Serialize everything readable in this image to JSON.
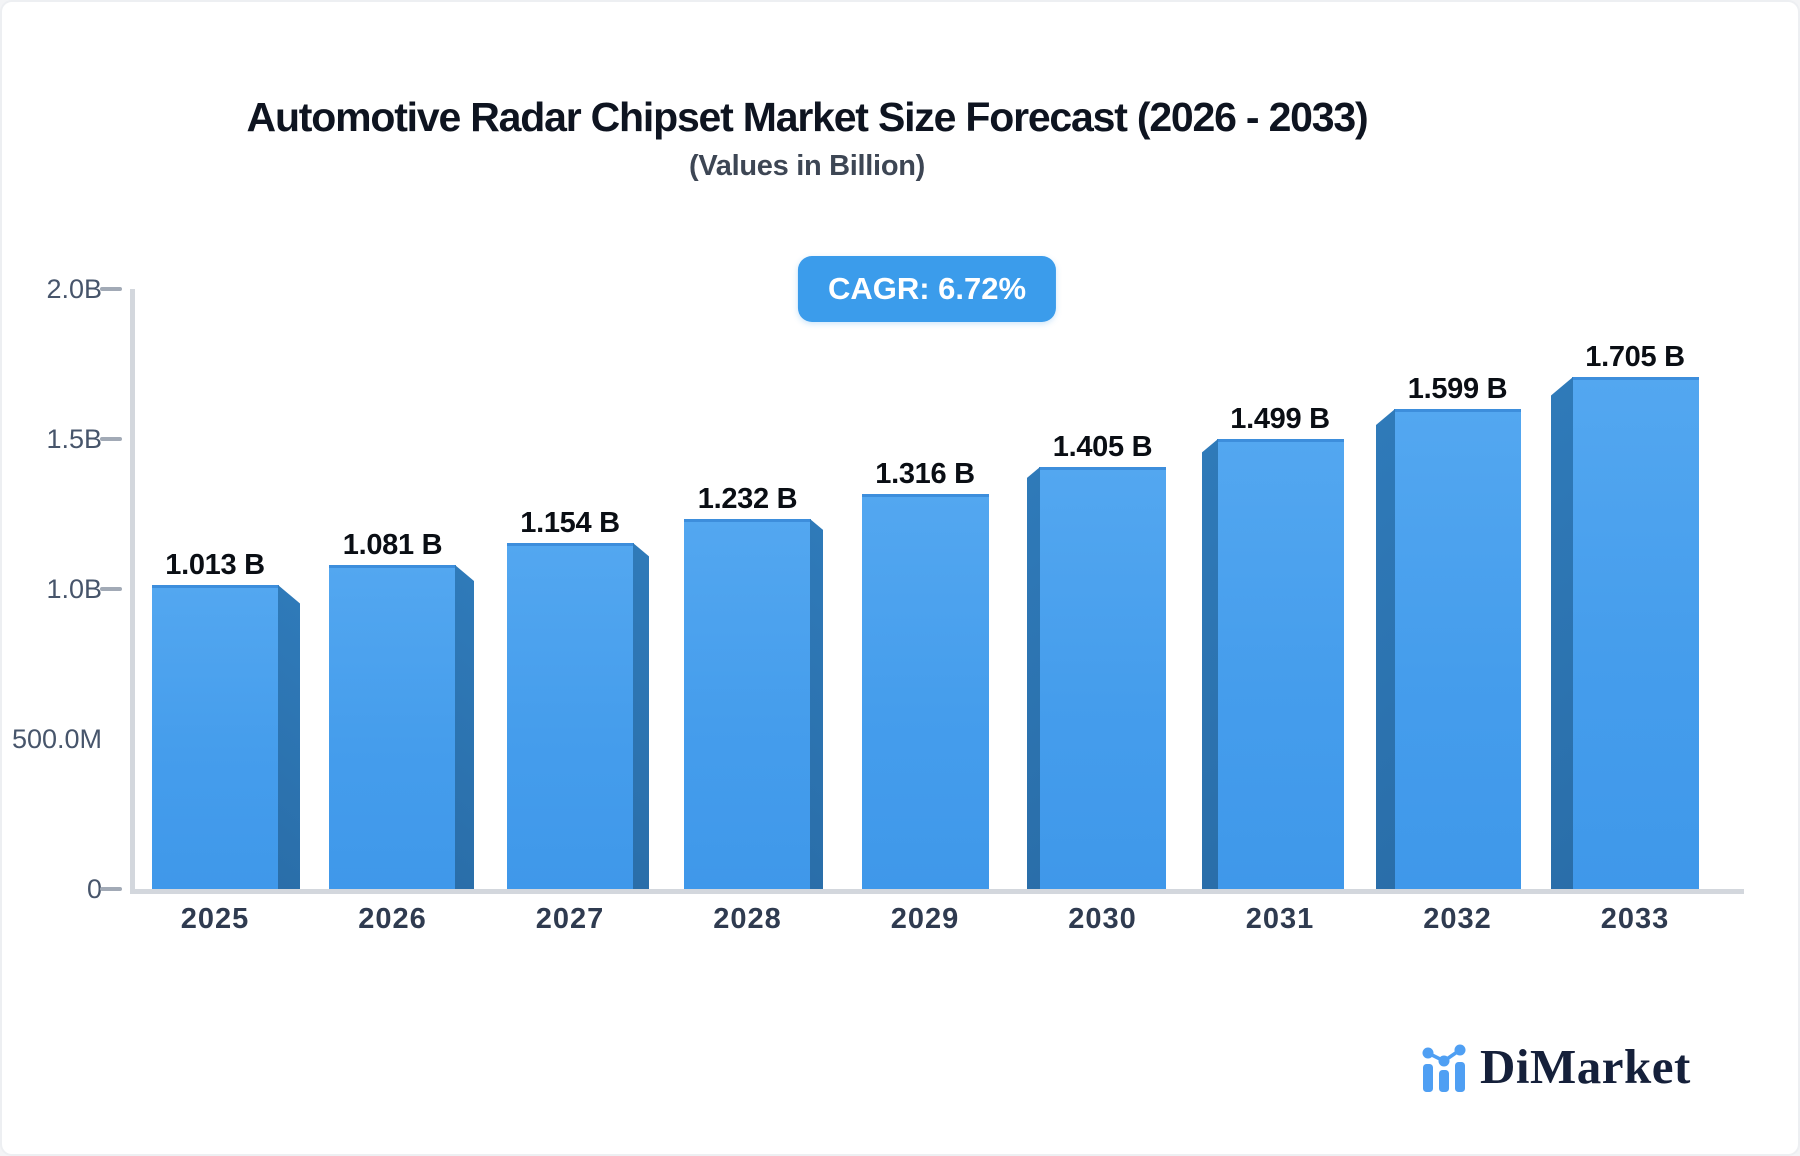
{
  "title": "Automotive Radar Chipset Market Size Forecast (2026 - 2033)",
  "subtitle": "(Values in Billion)",
  "badge": {
    "label": "CAGR: 6.72%",
    "bg_color": "#3b9ceb"
  },
  "chart_data": {
    "type": "bar",
    "style": "3d-perspective-bars",
    "title": "Automotive Radar Chipset Market Size Forecast (2026 - 2033)",
    "subtitle": "(Values in Billion)",
    "cagr_annotation": "CAGR: 6.72%",
    "categories": [
      "2025",
      "2026",
      "2027",
      "2028",
      "2029",
      "2030",
      "2031",
      "2032",
      "2033"
    ],
    "values": [
      1.013,
      1.081,
      1.154,
      1.232,
      1.316,
      1.405,
      1.499,
      1.599,
      1.705
    ],
    "value_labels": [
      "1.013 B",
      "1.081 B",
      "1.154 B",
      "1.232 B",
      "1.316 B",
      "1.405 B",
      "1.499 B",
      "1.599 B",
      "1.705 B"
    ],
    "unit": "B",
    "xlabel": "",
    "ylabel": "",
    "ylim": [
      0,
      2.0
    ],
    "grid": false,
    "legend": null,
    "yticks": [
      {
        "label": "2.0B",
        "value": 2.0,
        "has_tick_mark": true
      },
      {
        "label": "1.5B",
        "value": 1.5,
        "has_tick_mark": true
      },
      {
        "label": "1.0B",
        "value": 1.0,
        "has_tick_mark": true
      },
      {
        "label": "500.0M",
        "value": 0.5,
        "has_tick_mark": false
      },
      {
        "label": "0",
        "value": 0.0,
        "has_tick_mark": true
      }
    ],
    "bar_face_color": "#47a0ee",
    "bar_side_color": "#2d74b3",
    "axis_color": "#d3d7dd"
  },
  "logo": {
    "text": "DiMarket",
    "text_color": "#15203a",
    "accent_color": "#4f9ff3"
  }
}
